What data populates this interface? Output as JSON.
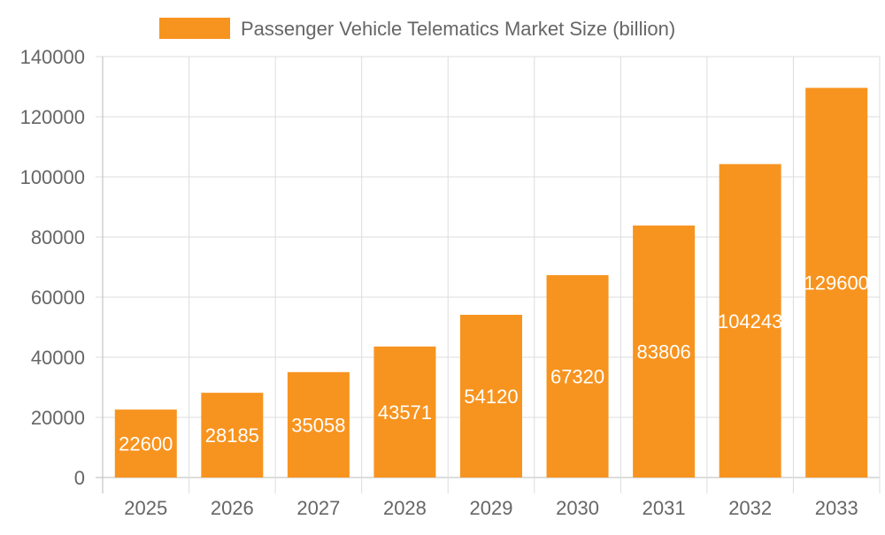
{
  "chart_data": {
    "type": "bar",
    "categories": [
      "2025",
      "2026",
      "2027",
      "2028",
      "2029",
      "2030",
      "2031",
      "2032",
      "2033"
    ],
    "series": [
      {
        "name": "Passenger Vehicle Telematics Market Size (billion)",
        "values": [
          22600,
          28185,
          35058,
          43571,
          54120,
          67320,
          83806,
          104243,
          129600
        ],
        "color": "#F7941F"
      }
    ],
    "ylim": [
      0,
      140000
    ],
    "yticks": [
      "0",
      "20000",
      "40000",
      "60000",
      "80000",
      "100000",
      "120000",
      "140000"
    ],
    "grid": true,
    "legend": "top",
    "xlabel": "",
    "ylabel": ""
  }
}
